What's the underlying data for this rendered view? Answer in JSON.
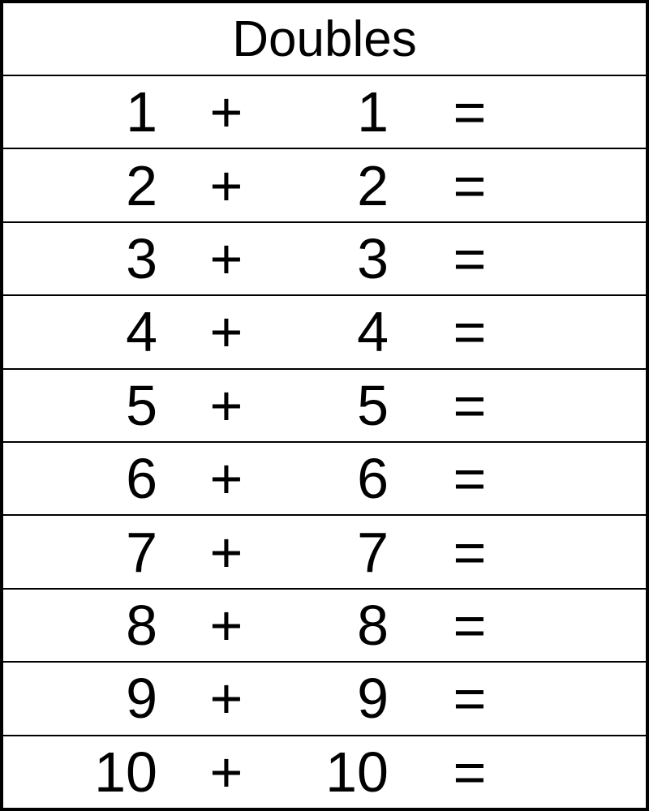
{
  "worksheet": {
    "title": "Doubles",
    "title_fontsize": 62,
    "row_fontsize": 70,
    "font_family": "Comic Sans MS",
    "background_color": "#ffffff",
    "border_color": "#000000",
    "border_width_outer": 4,
    "border_width_inner": 2,
    "text_color": "#000000",
    "plus_symbol": "+",
    "equals_symbol": "=",
    "rows": [
      {
        "left": "1",
        "right": "1",
        "answer": ""
      },
      {
        "left": "2",
        "right": "2",
        "answer": ""
      },
      {
        "left": "3",
        "right": "3",
        "answer": ""
      },
      {
        "left": "4",
        "right": "4",
        "answer": ""
      },
      {
        "left": "5",
        "right": "5",
        "answer": ""
      },
      {
        "left": "6",
        "right": "6",
        "answer": ""
      },
      {
        "left": "7",
        "right": "7",
        "answer": ""
      },
      {
        "left": "8",
        "right": "8",
        "answer": ""
      },
      {
        "left": "9",
        "right": "9",
        "answer": ""
      },
      {
        "left": "10",
        "right": "10",
        "answer": ""
      }
    ]
  }
}
